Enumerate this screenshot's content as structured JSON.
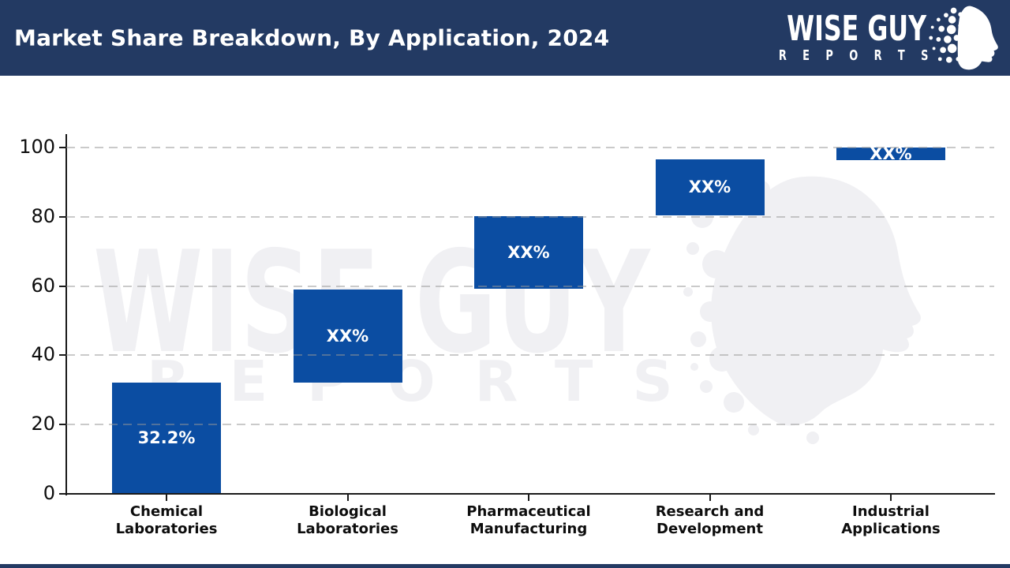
{
  "header": {
    "title": "Market Share Breakdown, By Application, 2024",
    "logo": {
      "line1": "WISE GUY",
      "line2": "R E P O R T S"
    }
  },
  "watermark": {
    "line1": "WISE GUY",
    "line2": "REPORTS"
  },
  "footer": {
    "note": ""
  },
  "colors": {
    "header_bg": "#233a63",
    "bar": "#0b4da2",
    "axis": "#1a1a1a",
    "gridline": "#dcdcdc",
    "watermark": "#f0f0f3",
    "value_label": "#ffffff"
  },
  "chart_data": {
    "type": "bar",
    "subtype": "floating-waterfall",
    "title": "Market Share Breakdown, By Application, 2024",
    "xlabel": "",
    "ylabel": "",
    "ylim": [
      0,
      104
    ],
    "yticks": [
      0,
      20,
      40,
      60,
      80,
      100
    ],
    "grid": "dashed-horizontal",
    "legend": "none",
    "categories": [
      "Chemical Laboratories",
      "Biological Laboratories",
      "Pharmaceutical Manufacturing",
      "Research and Development",
      "Industrial Applications"
    ],
    "category_lines": [
      [
        "Chemical",
        "Laboratories"
      ],
      [
        "Biological",
        "Laboratories"
      ],
      [
        "Pharmaceutical",
        "Manufacturing"
      ],
      [
        "Research and",
        "Development"
      ],
      [
        "Industrial",
        "Applications"
      ]
    ],
    "segments": [
      {
        "category": "Chemical Laboratories",
        "start": 0,
        "end": 32.2,
        "label": "32.2%"
      },
      {
        "category": "Biological Laboratories",
        "start": 32.2,
        "end": 59.0,
        "label": "XX%"
      },
      {
        "category": "Pharmaceutical Manufacturing",
        "start": 59.2,
        "end": 80.2,
        "label": "XX%"
      },
      {
        "category": "Research and Development",
        "start": 80.5,
        "end": 96.5,
        "label": "XX%"
      },
      {
        "category": "Industrial Applications",
        "start": 96.4,
        "end": 99.9,
        "label": "XX%"
      }
    ]
  }
}
